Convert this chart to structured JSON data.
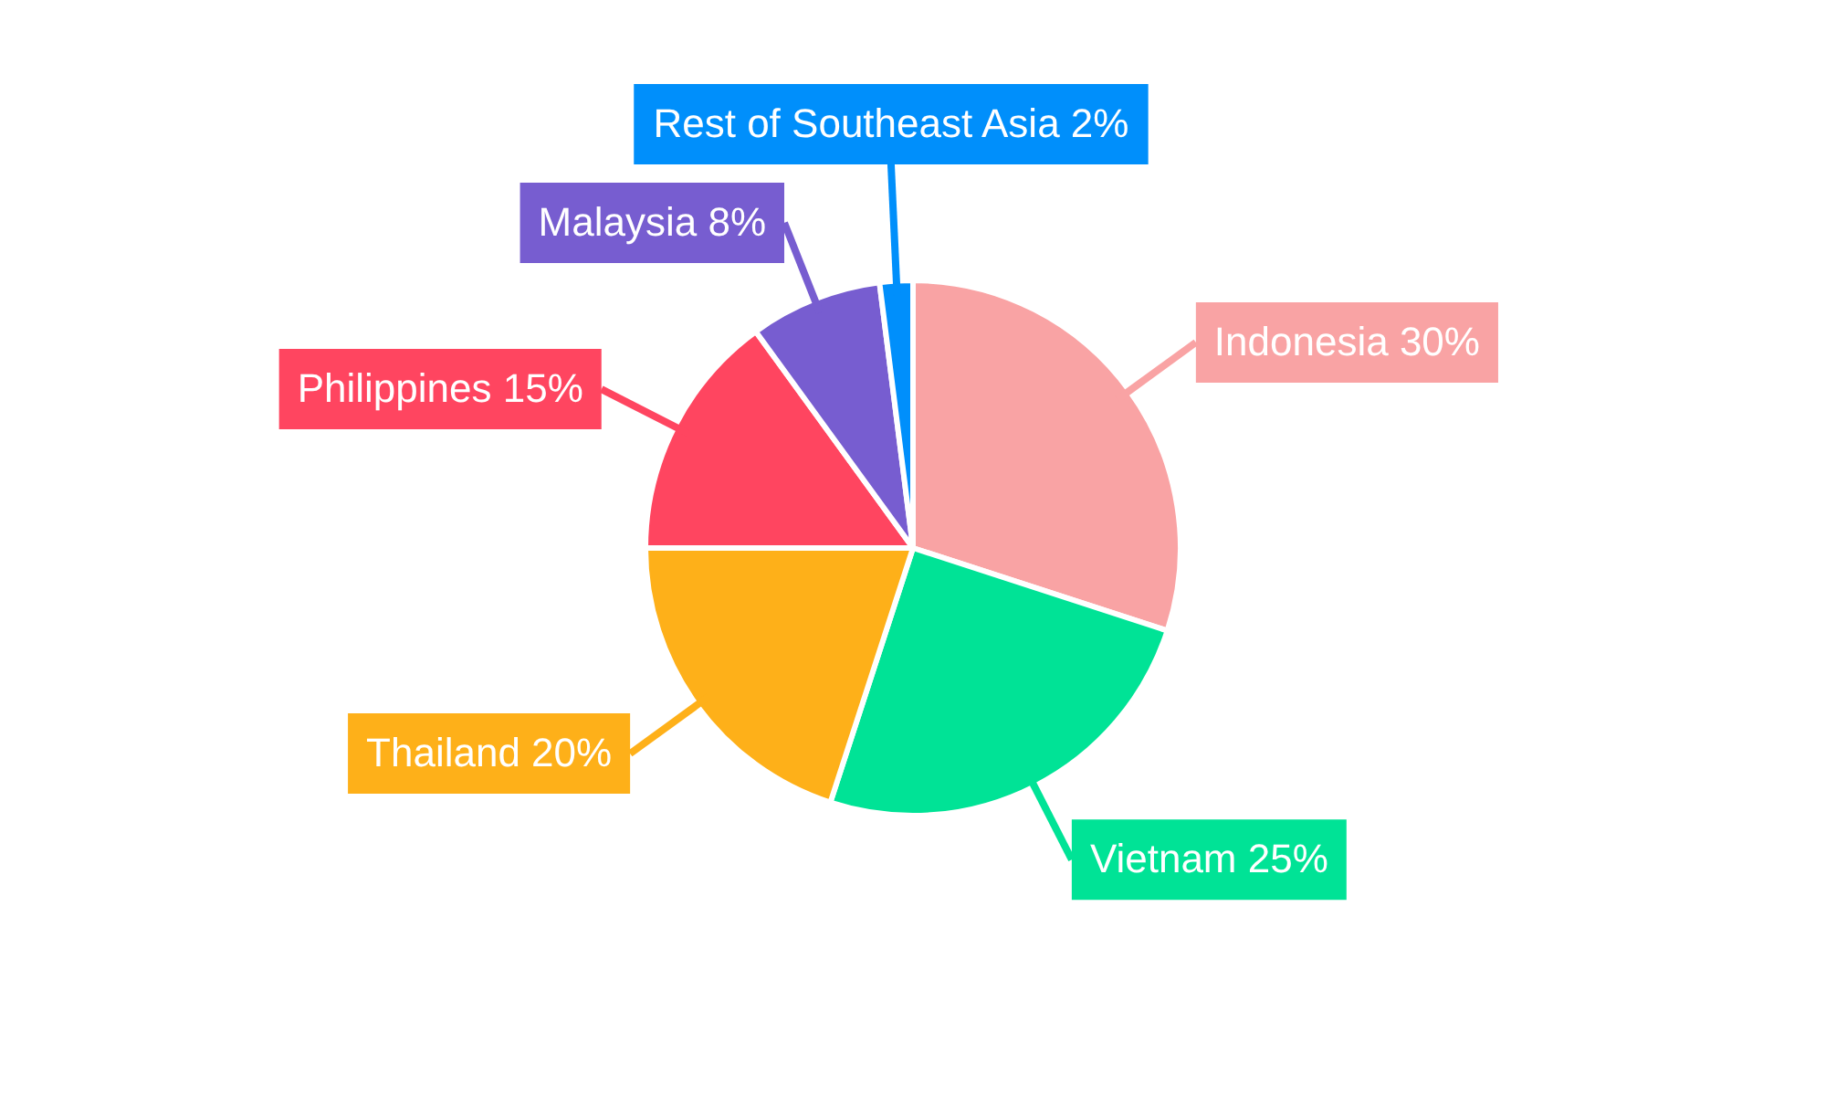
{
  "chart_data": {
    "type": "pie",
    "categories": [
      "Indonesia",
      "Vietnam",
      "Thailand",
      "Philippines",
      "Malaysia",
      "Rest of Southeast Asia"
    ],
    "values": [
      30,
      25,
      20,
      15,
      8,
      2
    ],
    "colors": [
      "#f9a3a4",
      "#00e396",
      "#feb019",
      "#ff4560",
      "#775dd0",
      "#008ffb"
    ],
    "value_labels": [
      "30%",
      "25%",
      "20%",
      "15%",
      "8%",
      "2%"
    ],
    "legend": false
  }
}
